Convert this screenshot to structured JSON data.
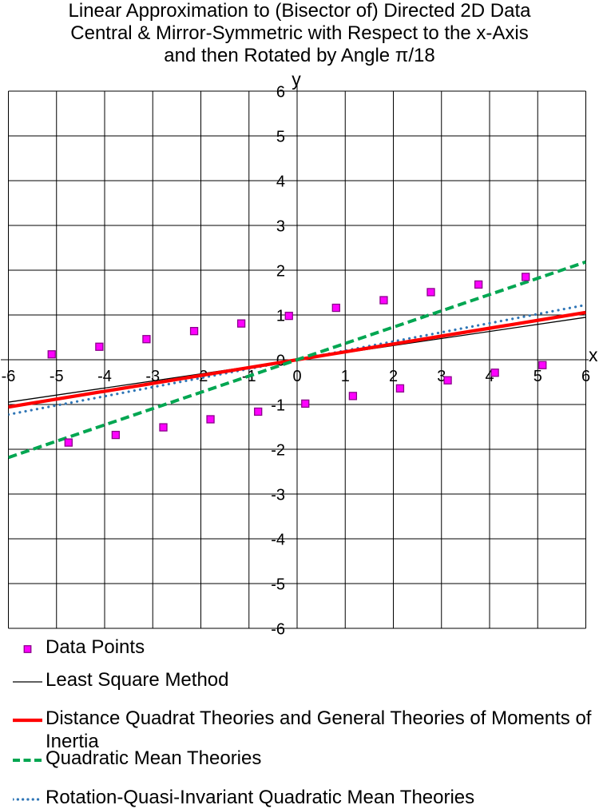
{
  "title": {
    "line1": "Linear Approximation to (Bisector of) Directed 2D Data",
    "line2": "Central & Mirror-Symmetric with Respect to the x-Axis",
    "line3": "and then Rotated by Angle π/18"
  },
  "chart_data": {
    "type": "scatter",
    "title": "Linear Approximation to (Bisector of) Directed 2D Data Central & Mirror-Symmetric with Respect to the x-Axis and then Rotated by Angle π/18",
    "xlabel": "x",
    "ylabel": "y",
    "xlim": [
      -6,
      6
    ],
    "ylim": [
      -6,
      6
    ],
    "x_ticks": [
      -6,
      -5,
      -4,
      -3,
      -2,
      -1,
      0,
      1,
      2,
      3,
      4,
      5,
      6
    ],
    "y_ticks": [
      6,
      5,
      4,
      3,
      2,
      1,
      0,
      -1,
      -2,
      -3,
      -4,
      -5,
      -6
    ],
    "grid": true,
    "grid_color": "#000000",
    "legend_position": "bottom",
    "points_series": {
      "name": "Data Points",
      "marker": "square",
      "fill": "#FF00FF",
      "border": "#8B008B",
      "points": [
        [
          -5.1,
          0.12
        ],
        [
          -4.11,
          0.29
        ],
        [
          -3.13,
          0.46
        ],
        [
          -2.14,
          0.64
        ],
        [
          -1.16,
          0.81
        ],
        [
          -0.17,
          0.98
        ],
        [
          0.81,
          1.16
        ],
        [
          1.8,
          1.33
        ],
        [
          2.78,
          1.51
        ],
        [
          3.77,
          1.68
        ],
        [
          4.75,
          1.85
        ],
        [
          -4.75,
          -1.85
        ],
        [
          -3.77,
          -1.68
        ],
        [
          -2.78,
          -1.51
        ],
        [
          -1.8,
          -1.33
        ],
        [
          -0.81,
          -1.16
        ],
        [
          0.17,
          -0.98
        ],
        [
          1.16,
          -0.81
        ],
        [
          2.14,
          -0.64
        ],
        [
          3.13,
          -0.46
        ],
        [
          4.11,
          -0.29
        ],
        [
          5.1,
          -0.12
        ]
      ]
    },
    "line_series": [
      {
        "name": "Least Square Method",
        "slope": 0.158,
        "intercept": 0,
        "color": "#000000",
        "style": "solid",
        "width": 1.3
      },
      {
        "name": "Distance Quadrat Theories and General Theories of Moments of Inertia",
        "slope": 0.176,
        "intercept": 0,
        "color": "#FF0000",
        "style": "solid",
        "width": 4.2
      },
      {
        "name": "Quadratic Mean Theories",
        "slope": 0.364,
        "intercept": 0,
        "color": "#00A651",
        "style": "dashed",
        "width": 4
      },
      {
        "name": "Rotation-Quasi-Invariant Quadratic Mean Theories",
        "slope": 0.204,
        "intercept": 0,
        "color": "#2E75B6",
        "style": "dotted",
        "width": 3.2
      }
    ]
  }
}
